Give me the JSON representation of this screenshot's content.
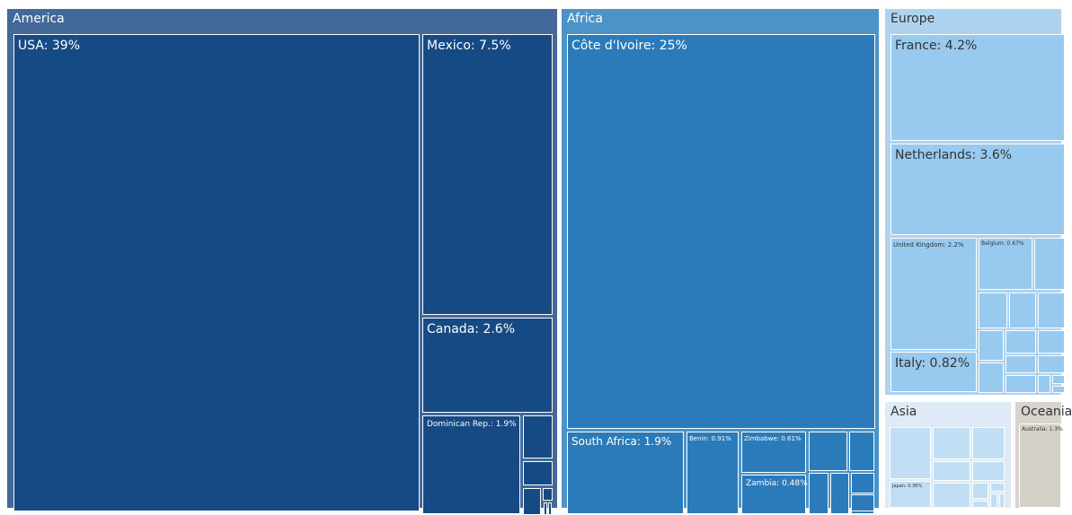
{
  "chart_data": {
    "type": "treemap",
    "regions": [
      {
        "name": "America",
        "color": "#43699a",
        "tile_color": "#154a84",
        "text_color": "#ffffff",
        "countries": [
          {
            "name": "USA",
            "label": "USA: 39%",
            "value": 39
          },
          {
            "name": "Mexico",
            "label": "Mexico: 7.5%",
            "value": 7.5
          },
          {
            "name": "Canada",
            "label": "Canada: 2.6%",
            "value": 2.6
          },
          {
            "name": "Dominican Rep.",
            "label": "Dominican Rep.: 1.9%",
            "value": 1.9
          },
          {
            "name": "",
            "label": "",
            "value": null
          },
          {
            "name": "",
            "label": "",
            "value": null
          },
          {
            "name": "",
            "label": "",
            "value": null
          },
          {
            "name": "",
            "label": "",
            "value": null
          },
          {
            "name": "",
            "label": "",
            "value": null
          },
          {
            "name": "",
            "label": "",
            "value": null
          }
        ]
      },
      {
        "name": "Africa",
        "color": "#4c93c8",
        "tile_color": "#2b7bba",
        "text_color": "#ffffff",
        "countries": [
          {
            "name": "Côte d'Ivoire",
            "label": "Côte d'Ivoire: 25%",
            "value": 25
          },
          {
            "name": "South Africa",
            "label": "South Africa: 1.9%",
            "value": 1.9
          },
          {
            "name": "Benin",
            "label": "Benin: 0.91%",
            "value": 0.91
          },
          {
            "name": "Zimbabwe",
            "label": "Zimbabwe: 0.61%",
            "value": 0.61
          },
          {
            "name": "Zambia",
            "label": "Zambia: 0.48%",
            "value": 0.48
          },
          {
            "name": "",
            "label": "",
            "value": null
          },
          {
            "name": "",
            "label": "",
            "value": null
          },
          {
            "name": "",
            "label": "",
            "value": null
          },
          {
            "name": "",
            "label": "",
            "value": null
          },
          {
            "name": "",
            "label": "",
            "value": null
          },
          {
            "name": "",
            "label": "",
            "value": null
          },
          {
            "name": "",
            "label": "",
            "value": null
          }
        ]
      },
      {
        "name": "Europe",
        "color": "#aed3f1",
        "tile_color": "#98c9ee",
        "text_color": "#333333",
        "countries": [
          {
            "name": "France",
            "label": "France: 4.2%",
            "value": 4.2
          },
          {
            "name": "Netherlands",
            "label": "Netherlands: 3.6%",
            "value": 3.6
          },
          {
            "name": "United Kingdom",
            "label": "United Kingdom: 2.2%",
            "value": 2.2
          },
          {
            "name": "Belgium",
            "label": "Belgium: 0.67%",
            "value": 0.67
          },
          {
            "name": "Italy",
            "label": "Italy: 0.82%",
            "value": 0.82
          },
          {
            "name": "",
            "label": "",
            "value": null
          },
          {
            "name": "",
            "label": "",
            "value": null
          },
          {
            "name": "",
            "label": "",
            "value": null
          },
          {
            "name": "",
            "label": "",
            "value": null
          },
          {
            "name": "",
            "label": "",
            "value": null
          },
          {
            "name": "",
            "label": "",
            "value": null
          },
          {
            "name": "",
            "label": "",
            "value": null
          },
          {
            "name": "",
            "label": "",
            "value": null
          },
          {
            "name": "",
            "label": "",
            "value": null
          },
          {
            "name": "",
            "label": "",
            "value": null
          },
          {
            "name": "",
            "label": "",
            "value": null
          },
          {
            "name": "",
            "label": "",
            "value": null
          },
          {
            "name": "",
            "label": "",
            "value": null
          },
          {
            "name": "",
            "label": "",
            "value": null
          }
        ]
      },
      {
        "name": "Asia",
        "color": "#deebf7",
        "tile_color": "#c1def4",
        "text_color": "#333333",
        "countries": [
          {
            "name": "",
            "label": "",
            "value": null
          },
          {
            "name": "",
            "label": "",
            "value": null
          },
          {
            "name": "",
            "label": "",
            "value": null
          },
          {
            "name": "Japan",
            "label": "Japan: 0.36%",
            "value": 0.36
          },
          {
            "name": "",
            "label": "",
            "value": null
          },
          {
            "name": "",
            "label": "",
            "value": null
          },
          {
            "name": "",
            "label": "",
            "value": null
          },
          {
            "name": "",
            "label": "",
            "value": null
          },
          {
            "name": "",
            "label": "",
            "value": null
          },
          {
            "name": "",
            "label": "",
            "value": null
          },
          {
            "name": "",
            "label": "",
            "value": null
          },
          {
            "name": "",
            "label": "",
            "value": null
          }
        ]
      },
      {
        "name": "Oceania",
        "color": "#d6d4cc",
        "tile_color": "#d3d1c8",
        "text_color": "#333333",
        "countries": [
          {
            "name": "Australia",
            "label": "Australia: 1.3%",
            "value": 1.3
          }
        ]
      }
    ]
  }
}
